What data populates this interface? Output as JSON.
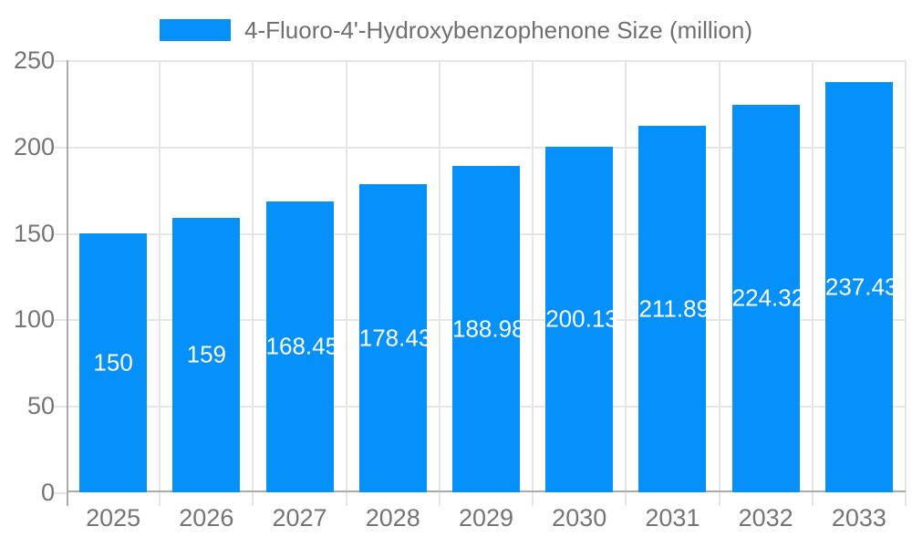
{
  "legend": {
    "label": "4-Fluoro-4'-Hydroxybenzophenone Size (million)"
  },
  "chart_data": {
    "type": "bar",
    "title": "4-Fluoro-4'-Hydroxybenzophenone Size (million)",
    "categories": [
      "2025",
      "2026",
      "2027",
      "2028",
      "2029",
      "2030",
      "2031",
      "2032",
      "2033"
    ],
    "values": [
      150,
      159,
      168.45,
      178.43,
      188.98,
      200.13,
      211.89,
      224.32,
      237.43
    ],
    "value_labels": [
      "150",
      "159",
      "168.45",
      "178.43",
      "188.98",
      "200.13",
      "211.89",
      "224.32",
      "237.43"
    ],
    "xlabel": "",
    "ylabel": "",
    "ylim": [
      0,
      250
    ],
    "yticks": [
      0,
      50,
      100,
      150,
      200,
      250
    ],
    "grid": true,
    "legend_position": "top-center",
    "colors": {
      "bar": "#0690fa",
      "bar_value_text": "#ffffff",
      "axis_text": "#757575",
      "legend_text": "#6f6f6f",
      "gridline": "#e6e6e6",
      "axis_line": "#ababab",
      "background": "#ffffff"
    }
  }
}
